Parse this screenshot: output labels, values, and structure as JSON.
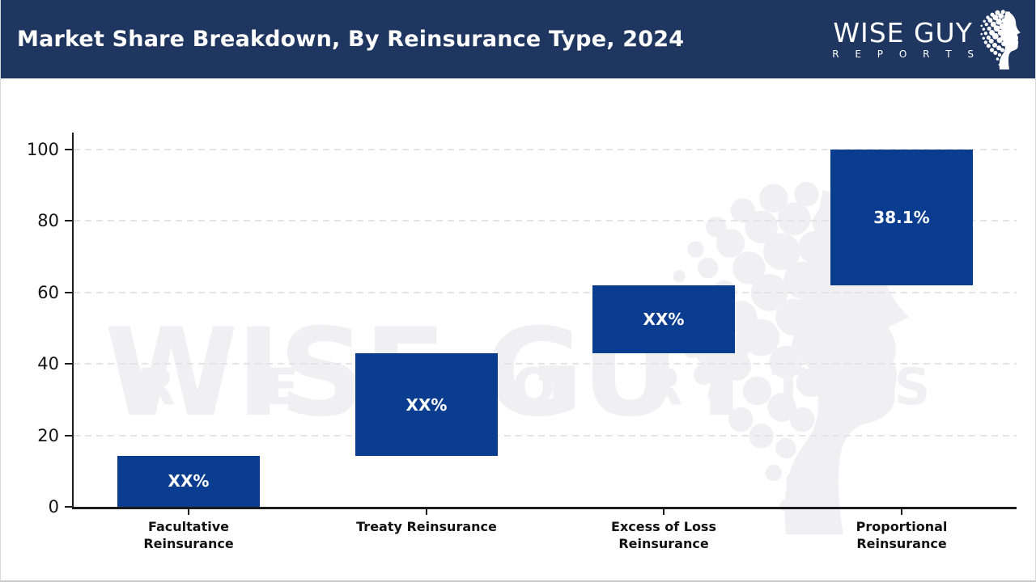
{
  "header": {
    "bg": "#1f3660",
    "title": "Market Share Breakdown, By Reinsurance Type, 2024",
    "logo": {
      "wordmark": "WISE GUY",
      "subtext": "R E P O R T S"
    }
  },
  "watermark": {
    "wordmark": "WISE GUY",
    "subtext": "R E P O R T S"
  },
  "chart_data": {
    "type": "bar",
    "subtype": "waterfall",
    "title": "Market Share Breakdown, By Reinsurance Type, 2024",
    "categories": [
      "Facultative Reinsurance",
      "Treaty Reinsurance",
      "Excess of Loss Reinsurance",
      "Proportional Reinsurance"
    ],
    "category_label_lines": [
      [
        "Facultative",
        "Reinsurance"
      ],
      [
        "Treaty Reinsurance"
      ],
      [
        "Excess of Loss",
        "Reinsurance"
      ],
      [
        "Proportional",
        "Reinsurance"
      ]
    ],
    "segments": [
      {
        "category": "Facultative Reinsurance",
        "start": 0,
        "end": 14.3,
        "value_label": "XX%"
      },
      {
        "category": "Treaty Reinsurance",
        "start": 14.3,
        "end": 42.9,
        "value_label": "XX%"
      },
      {
        "category": "Excess of Loss Reinsurance",
        "start": 42.9,
        "end": 61.9,
        "value_label": "XX%"
      },
      {
        "category": "Proportional Reinsurance",
        "start": 61.9,
        "end": 100,
        "value_label": "38.1%"
      }
    ],
    "ylim": [
      0,
      100
    ],
    "yticks": [
      0,
      20,
      40,
      60,
      80,
      100
    ],
    "grid": "horizontal-dashed",
    "legend": "none",
    "bar_color": "#0a3d90",
    "bar_label_color": "#ffffff"
  }
}
